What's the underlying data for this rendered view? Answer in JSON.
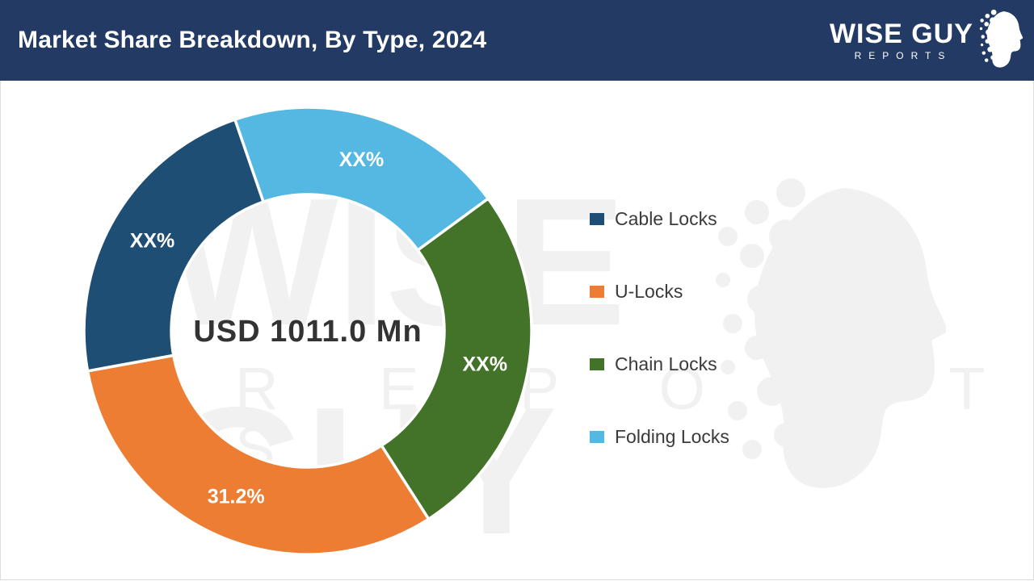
{
  "header": {
    "title": "Market Share Breakdown, By Type, 2024",
    "bg_color": "#223a64",
    "logo": {
      "line1": "WISE GUY",
      "line2": "REPORTS"
    }
  },
  "watermark": {
    "line1": "WISE GUY",
    "line2": "R E P O R T S"
  },
  "chart_data": {
    "type": "donut",
    "title": "Market Share Breakdown, By Type, 2024",
    "center_label": "USD 1011.0 Mn",
    "unit": "percent market share",
    "legend_position": "right",
    "series": [
      {
        "name": "Cable Locks",
        "value": 22.6,
        "label": "XX%",
        "color": "#1f4e74"
      },
      {
        "name": "U-Locks",
        "value": 31.2,
        "label": "31.2%",
        "color": "#ec7d33"
      },
      {
        "name": "Chain Locks",
        "value": 26.0,
        "label": "XX%",
        "color": "#427328"
      },
      {
        "name": "Folding Locks",
        "value": 20.2,
        "label": "XX%",
        "color": "#54b8e3"
      }
    ],
    "start_angle_deg": -19,
    "clockwise_draw_order": [
      "Folding Locks",
      "Chain Locks",
      "U-Locks",
      "Cable Locks"
    ],
    "slice_border_color": "#ffffff",
    "inner_radius_ratio": 0.61
  }
}
